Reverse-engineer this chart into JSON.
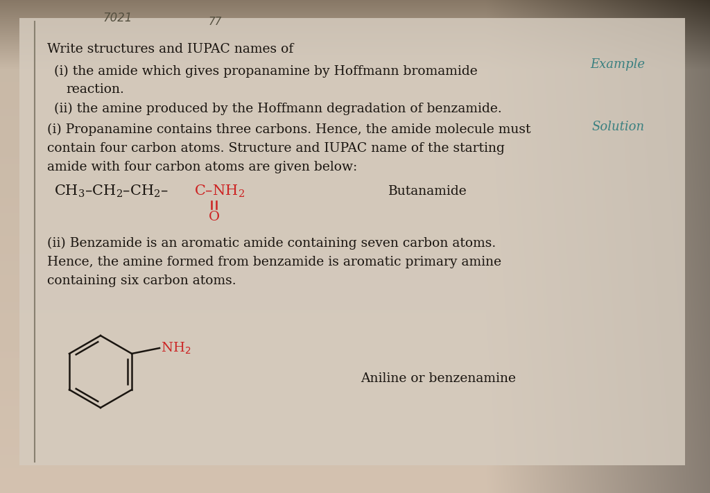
{
  "bg_color_top": "#a09080",
  "bg_color_bottom": "#b0a090",
  "page_color": "#d8cfc0",
  "page_shadow_color": "#b0a898",
  "title_text": "Write structures and IUPAC names of",
  "q_i_line1": "(i) the amide which gives propanamine by Hoffmann bromamide",
  "q_i_line2": "    reaction.",
  "q_ii": "(ii) the amine produced by the Hoffmann degradation of benzamide.",
  "example_label": "Example",
  "solution_label": "Solution",
  "sol_i_line1": "(i) Propanamine contains three carbons. Hence, the amide molecule must",
  "sol_i_line2": "contain four carbon atoms. Structure and IUPAC name of the starting",
  "sol_i_line3": "amide with four carbon atoms are given below:",
  "compound_name_i": "Butanamide",
  "sol_ii_line1": "(ii) Benzamide is an aromatic amide containing seven carbon atoms.",
  "sol_ii_line2": "Hence, the amine formed from benzamide is aromatic primary amine",
  "sol_ii_line3": "containing six carbon atoms.",
  "compound_name_ii": "Aniline or benzenamine",
  "page_number_top": "7021",
  "page_number_top2": "77",
  "formula_color": "#cc2222",
  "text_color": "#1a1510",
  "teal_color": "#3a8080",
  "dark_color": "#2a2010"
}
